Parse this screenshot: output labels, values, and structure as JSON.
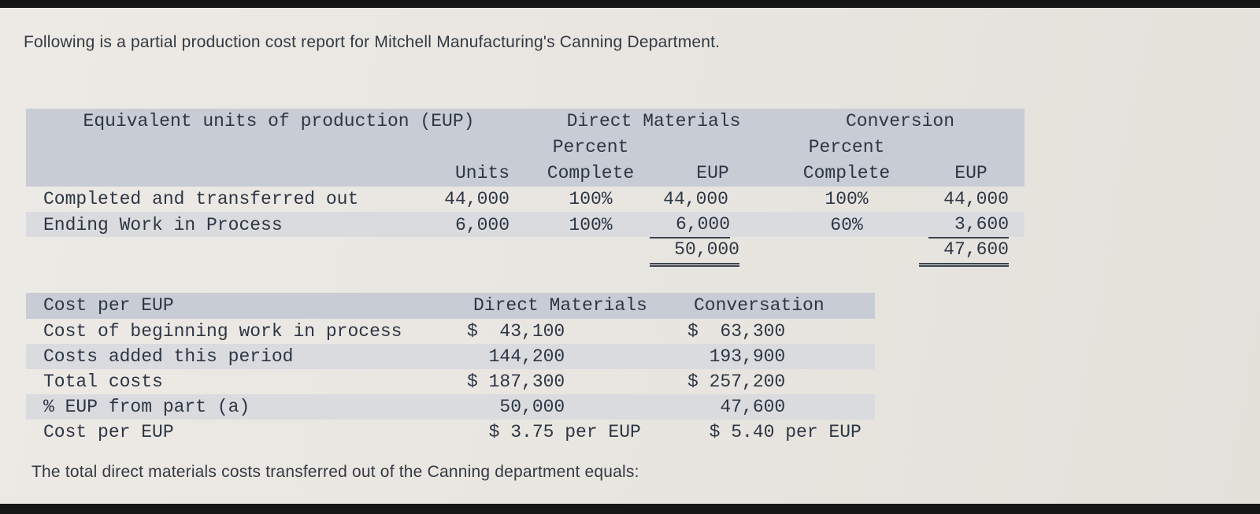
{
  "page": {
    "intro": "Following is a partial production cost report for Mitchell Manufacturing's Canning Department.",
    "question": "The total direct materials costs transferred out of the Canning department equals:"
  },
  "colors": {
    "page_background": "#e9e6e1",
    "header_band": "#c8ccd5",
    "row_stripe": "#d9dbdf",
    "table_ink": "#2d3643",
    "body_text": "#333a42",
    "screen_bar": "#161616"
  },
  "eup_table": {
    "title": "Equivalent units of production (EUP)",
    "group_headers": {
      "direct_materials": "Direct Materials",
      "conversion": "Conversion"
    },
    "sub_headers": {
      "units": "Units",
      "dm_percent_line1": "Percent",
      "dm_percent_line2": "Complete",
      "dm_eup": "EUP",
      "cv_percent_line1": "Percent",
      "cv_percent_line2": "Complete",
      "cv_eup": "EUP"
    },
    "rows": [
      {
        "label": "Completed and transferred out",
        "units": "44,000",
        "dm_percent": "100%",
        "dm_eup": "44,000",
        "cv_percent": "100%",
        "cv_eup": "44,000"
      },
      {
        "label": "Ending Work in Process",
        "units": "6,000",
        "dm_percent": "100%",
        "dm_eup": "6,000",
        "cv_percent": "60%",
        "cv_eup": "3,600"
      }
    ],
    "totals": {
      "dm_eup": "50,000",
      "cv_eup": "47,600"
    }
  },
  "cost_table": {
    "title": "Cost per EUP",
    "column_headers": {
      "direct_materials": "Direct Materials",
      "conversion": "Conversation"
    },
    "rows": [
      {
        "label": "Cost of beginning work in process",
        "dm": "$  43,100",
        "cv": "$  63,300"
      },
      {
        "label": "Costs added this period",
        "dm": "  144,200",
        "cv": "  193,900"
      },
      {
        "label": "Total costs",
        "dm": "$ 187,300",
        "cv": "$ 257,200"
      },
      {
        "label": "% EUP from part (a)",
        "dm": "   50,000",
        "cv": "   47,600"
      },
      {
        "label": "Cost per EUP",
        "dm": "  $ 3.75 per EUP",
        "cv": "  $ 5.40 per EUP"
      }
    ]
  }
}
